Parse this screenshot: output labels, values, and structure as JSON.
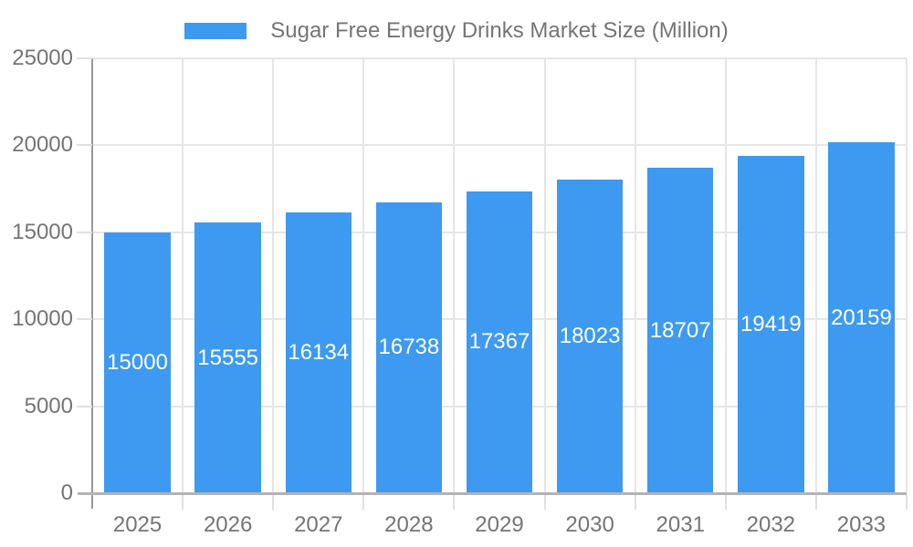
{
  "chart_data": {
    "type": "bar",
    "title": "Sugar Free Energy Drinks Market Size (Million)",
    "categories": [
      "2025",
      "2026",
      "2027",
      "2028",
      "2029",
      "2030",
      "2031",
      "2032",
      "2033"
    ],
    "values": [
      15000,
      15555,
      16134,
      16738,
      17367,
      18023,
      18707,
      19419,
      20159
    ],
    "xlabel": "",
    "ylabel": "",
    "ylim": [
      0,
      25000
    ],
    "yticks": [
      0,
      5000,
      10000,
      15000,
      20000,
      25000
    ],
    "grid": true,
    "legend_position": "top",
    "value_labels_inside_bars": true
  },
  "colors": {
    "bar": "#3d9af0",
    "bar_value_label": "#ffffff",
    "axis_label_text": "#757575",
    "gridline": "#e6e6e6",
    "tick": "#e0e0e0",
    "y_axis_line": "#999999",
    "x_baseline": "#b3b3b3",
    "background": "#ffffff"
  }
}
